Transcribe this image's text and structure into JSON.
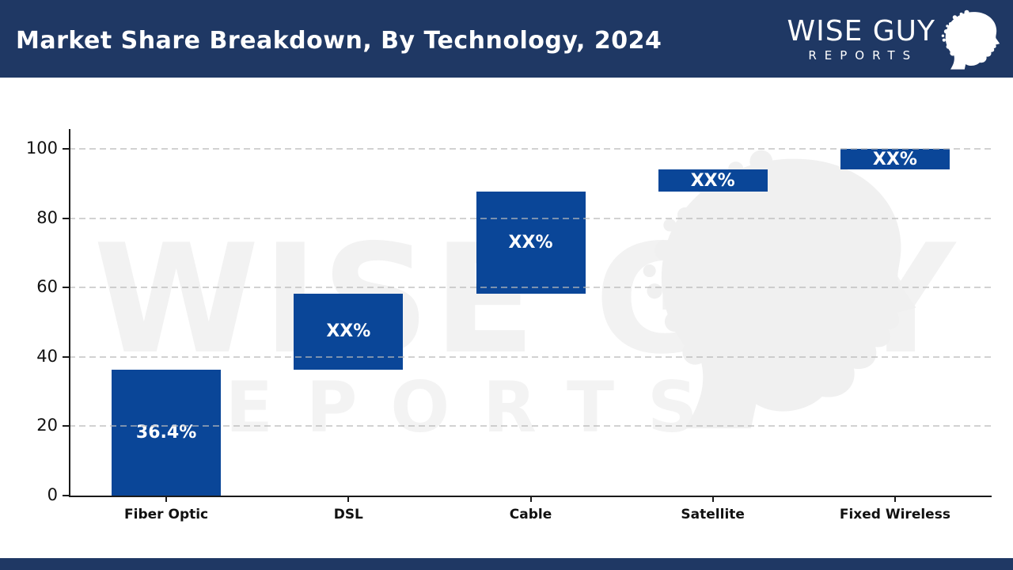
{
  "header": {
    "title": "Market Share Breakdown, By Technology, 2024",
    "bg_color": "#1f3864",
    "logo": {
      "line1": "WISE GUY",
      "line2": "REPORTS"
    }
  },
  "watermark": {
    "line1": "WISE GUY",
    "line2": "REPORTS"
  },
  "chart_data": {
    "type": "bar",
    "variant": "waterfall",
    "title": "Market Share Breakdown, By Technology, 2024",
    "categories": [
      "Fiber Optic",
      "DSL",
      "Cable",
      "Satellite",
      "Fixed Wireless"
    ],
    "segments": [
      {
        "category": "Fiber Optic",
        "start": 0,
        "end": 36.4,
        "label": "36.4%"
      },
      {
        "category": "DSL",
        "start": 36.4,
        "end": 58.2,
        "label": "XX%"
      },
      {
        "category": "Cable",
        "start": 58.2,
        "end": 87.7,
        "label": "XX%"
      },
      {
        "category": "Satellite",
        "start": 87.7,
        "end": 94.0,
        "label": "XX%"
      },
      {
        "category": "Fixed Wireless",
        "start": 94.0,
        "end": 100.0,
        "label": "XX%"
      }
    ],
    "ylim": [
      0,
      100
    ],
    "yticks": [
      0,
      20,
      40,
      60,
      80,
      100
    ],
    "xlabel": "",
    "ylabel": "",
    "legend": "none",
    "grid": {
      "axis": "y",
      "style": "dashed",
      "color": "#d9d9d9",
      "drawn_over_bars": true
    },
    "bar_color": "#0a4698",
    "bar_label_color": "#ffffff"
  }
}
